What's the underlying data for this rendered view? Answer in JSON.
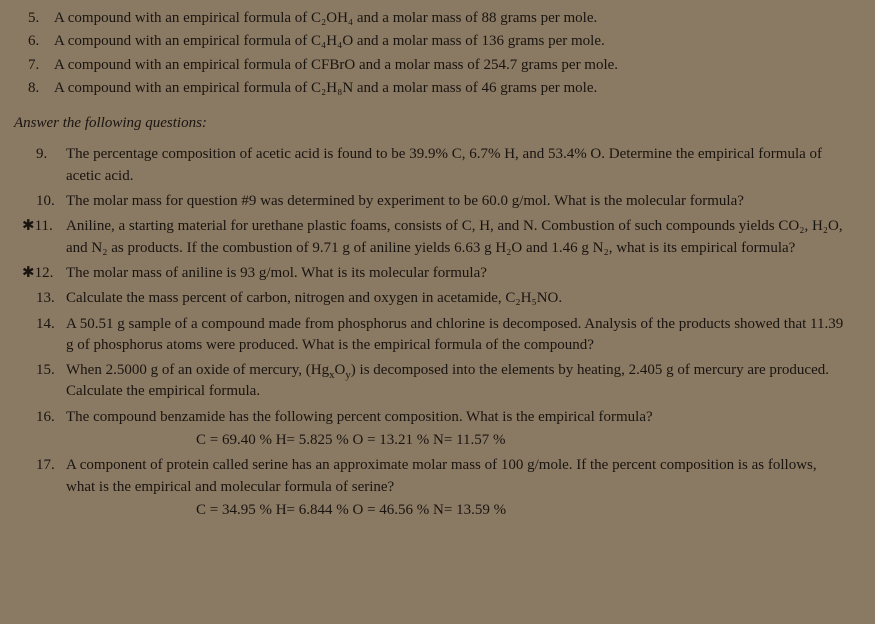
{
  "top_items": [
    {
      "num": "5.",
      "text": "A compound with an empirical formula of C₂OH₄ and a molar mass of 88 grams per mole."
    },
    {
      "num": "6.",
      "text": "A compound with an empirical formula of C₄H₄O and a molar mass of 136 grams per mole."
    },
    {
      "num": "7.",
      "text": "A compound with an empirical formula of CFBrO and a molar mass of 254.7 grams per mole."
    },
    {
      "num": "8.",
      "text": "A compound with an empirical formula of C₂H₈N and a molar mass of 46 grams per mole."
    }
  ],
  "section_heading": "Answer the following questions:",
  "questions": [
    {
      "num": "9.",
      "star": false,
      "text": "The percentage composition of acetic acid is found to be 39.9% C, 6.7% H, and 53.4% O. Determine the empirical formula of acetic acid."
    },
    {
      "num": "10.",
      "star": false,
      "text": "The molar mass for question #9 was determined by experiment to be 60.0 g/mol. What is the molecular formula?"
    },
    {
      "num": "11.",
      "star": true,
      "text": "Aniline, a starting material for urethane plastic foams, consists of C, H, and N. Combustion of such compounds yields CO₂, H₂O, and N₂ as products. If the combustion of 9.71 g of aniline yields 6.63 g H₂O and 1.46 g N₂, what is its empirical formula?"
    },
    {
      "num": "12.",
      "star": true,
      "text": "The molar mass of aniline is 93 g/mol. What is its molecular formula?"
    },
    {
      "num": "13.",
      "star": false,
      "text": "Calculate the mass percent of carbon, nitrogen and oxygen in acetamide, C₂H₅NO."
    },
    {
      "num": "14.",
      "star": false,
      "text": "A 50.51 g sample of a compound made from phosphorus and chlorine is decomposed. Analysis of the products showed that 11.39 g of phosphorus atoms were produced. What is the empirical formula of the compound?"
    },
    {
      "num": "15.",
      "star": false,
      "text_pre": "When 2.5000 g of an oxide of mercury, (Hg",
      "sub1": "x",
      "mid": "O",
      "sub2": "y",
      "text_post": ") is decomposed into the elements by heating, 2.405 g of mercury are produced. Calculate the empirical formula."
    },
    {
      "num": "16.",
      "star": false,
      "text": "The compound benzamide has the following percent composition. What is the empirical formula?",
      "formula": "C = 69.40 % H= 5.825 % O = 13.21 % N= 11.57 %"
    },
    {
      "num": "17.",
      "star": false,
      "text": "A component of protein called serine has an approximate molar mass of 100 g/mole. If the percent composition is as follows, what is the empirical and molecular formula of serine?",
      "formula": "C = 34.95 % H= 6.844 % O = 46.56 % N= 13.59 %"
    }
  ]
}
